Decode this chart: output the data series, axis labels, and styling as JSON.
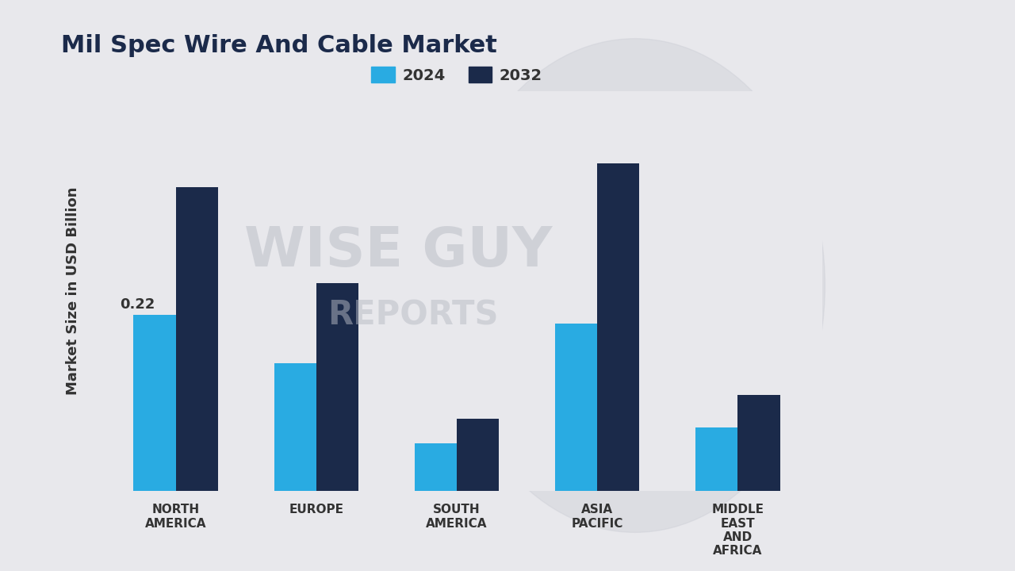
{
  "title": "Mil Spec Wire And Cable Market",
  "ylabel": "Market Size in USD Billion",
  "categories": [
    "NORTH\nAMERICA",
    "EUROPE",
    "SOUTH\nAMERICA",
    "ASIA\nPACIFIC",
    "MIDDLE\nEAST\nAND\nAFRICA"
  ],
  "values_2024": [
    0.22,
    0.16,
    0.06,
    0.21,
    0.08
  ],
  "values_2032": [
    0.38,
    0.26,
    0.09,
    0.41,
    0.12
  ],
  "color_2024": "#29ABE2",
  "color_2032": "#1B2A4A",
  "bar_annotation": "0.22",
  "bar_annotation_index": 0,
  "bg_color": "#E8E8EC",
  "right_panel_color": "#1B2A4A",
  "title_color": "#1B2A4A",
  "legend_labels": [
    "2024",
    "2032"
  ],
  "bar_width": 0.3,
  "ylim": [
    0,
    0.5
  ]
}
